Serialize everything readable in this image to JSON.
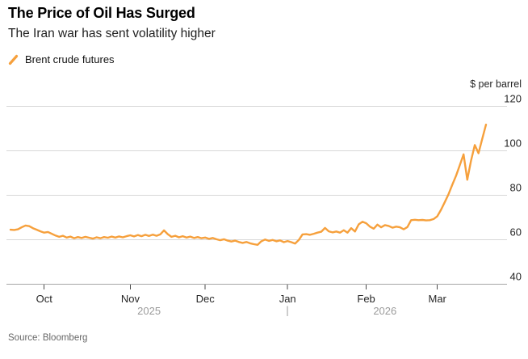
{
  "chart": {
    "title": "The Price of Oil Has Surged",
    "subtitle": "The Iran war has sent volatility higher",
    "legend": [
      {
        "label": "Brent crude futures",
        "color": "#F6A03C"
      }
    ],
    "unit_label": "$ per barrel",
    "source": "Source: Bloomberg"
  },
  "chart_data": {
    "type": "line",
    "title": "The Price of Oil Has Surged",
    "subtitle": "The Iran war has sent volatility higher",
    "ylabel": "$ per barrel",
    "ylim": [
      40,
      120
    ],
    "y_ticks": [
      40,
      60,
      80,
      100,
      120
    ],
    "grid": "horizontal",
    "legend_position": "top-left",
    "source": "Source: Bloomberg",
    "x_axis": {
      "month_ticks": [
        {
          "label": "Oct",
          "index": 9
        },
        {
          "label": "Nov",
          "index": 32
        },
        {
          "label": "Dec",
          "index": 52
        },
        {
          "label": "Jan",
          "index": 74
        },
        {
          "label": "Feb",
          "index": 95
        },
        {
          "label": "Mar",
          "index": 114
        }
      ],
      "year_labels": [
        {
          "label": "2025",
          "index": 37
        },
        {
          "label": "2026",
          "index": 100
        }
      ],
      "year_separator_index": 74
    },
    "series": [
      {
        "name": "Brent crude futures",
        "color": "#F6A03C",
        "values": [
          64.5,
          64.4,
          64.7,
          65.6,
          66.4,
          66.1,
          65.2,
          64.5,
          63.8,
          63.2,
          63.5,
          62.7,
          61.9,
          61.3,
          61.8,
          61.0,
          61.4,
          60.7,
          61.2,
          60.8,
          61.3,
          60.9,
          60.5,
          61.1,
          60.7,
          61.2,
          60.9,
          61.4,
          61.0,
          61.5,
          61.1,
          61.6,
          62.0,
          61.5,
          62.1,
          61.6,
          62.2,
          61.7,
          62.3,
          61.8,
          62.4,
          64.2,
          62.5,
          61.3,
          61.8,
          61.1,
          61.6,
          61.0,
          61.4,
          60.8,
          61.2,
          60.7,
          61.0,
          60.4,
          60.8,
          60.2,
          59.8,
          60.2,
          59.6,
          59.2,
          59.6,
          59.0,
          58.6,
          59.0,
          58.4,
          58.0,
          57.7,
          59.3,
          60.1,
          59.5,
          59.9,
          59.3,
          59.7,
          58.9,
          59.4,
          58.9,
          58.3,
          59.9,
          62.4,
          62.5,
          62.2,
          62.7,
          63.2,
          63.6,
          65.3,
          63.8,
          63.3,
          63.7,
          63.2,
          64.3,
          63.2,
          65.2,
          63.7,
          66.9,
          68.1,
          67.4,
          65.9,
          65.0,
          66.8,
          65.6,
          66.6,
          66.2,
          65.4,
          65.9,
          65.6,
          64.7,
          65.7,
          68.8,
          69.0,
          68.8,
          68.9,
          68.7,
          68.8,
          69.3,
          70.6,
          73.5,
          77.0,
          80.5,
          84.8,
          88.8,
          93.5,
          98.4,
          87.0,
          95.5,
          102.6,
          98.9,
          105.5,
          111.8
        ]
      }
    ],
    "colors": {
      "line": "#F6A03C",
      "grid": "#D8D8D8",
      "axis": "#A6A6A6",
      "tick_mark": "#4A4A4A",
      "tick_text": "#262626",
      "year_text": "#9B9B9B",
      "source_text": "#666666"
    }
  }
}
